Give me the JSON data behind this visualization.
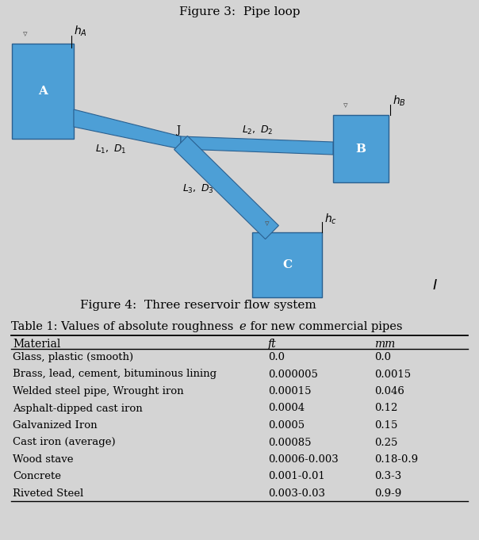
{
  "fig3_title": "Figure 3:  Pipe loop",
  "fig4_title": "Figure 4:  Three reservoir flow system",
  "table_title": "Table 1: Values of absolute roughness ",
  "table_title_italic": "e",
  "table_title_rest": " for new commercial pipes",
  "table_headers": [
    "Material",
    "ft",
    "mm"
  ],
  "table_rows": [
    [
      "Glass, plastic (smooth)",
      "0.0",
      "0.0"
    ],
    [
      "Brass, lead, cement, bituminous lining",
      "0.000005",
      "0.0015"
    ],
    [
      "Welded steel pipe, Wrought iron",
      "0.00015",
      "0.046"
    ],
    [
      "Asphalt-dipped cast iron",
      "0.0004",
      "0.12"
    ],
    [
      "Galvanized Iron",
      "0.0005",
      "0.15"
    ],
    [
      "Cast iron (average)",
      "0.00085",
      "0.25"
    ],
    [
      "Wood stave",
      "0.0006-0.003",
      "0.18-0.9"
    ],
    [
      "Concrete",
      "0.001-0.01",
      "0.3-3"
    ],
    [
      "Riveted Steel",
      "0.003-0.03",
      "0.9-9"
    ]
  ],
  "tank_color": "#4d9fd6",
  "bg_color": "#c8c8c8",
  "fig_bg": "#d4d4d4"
}
